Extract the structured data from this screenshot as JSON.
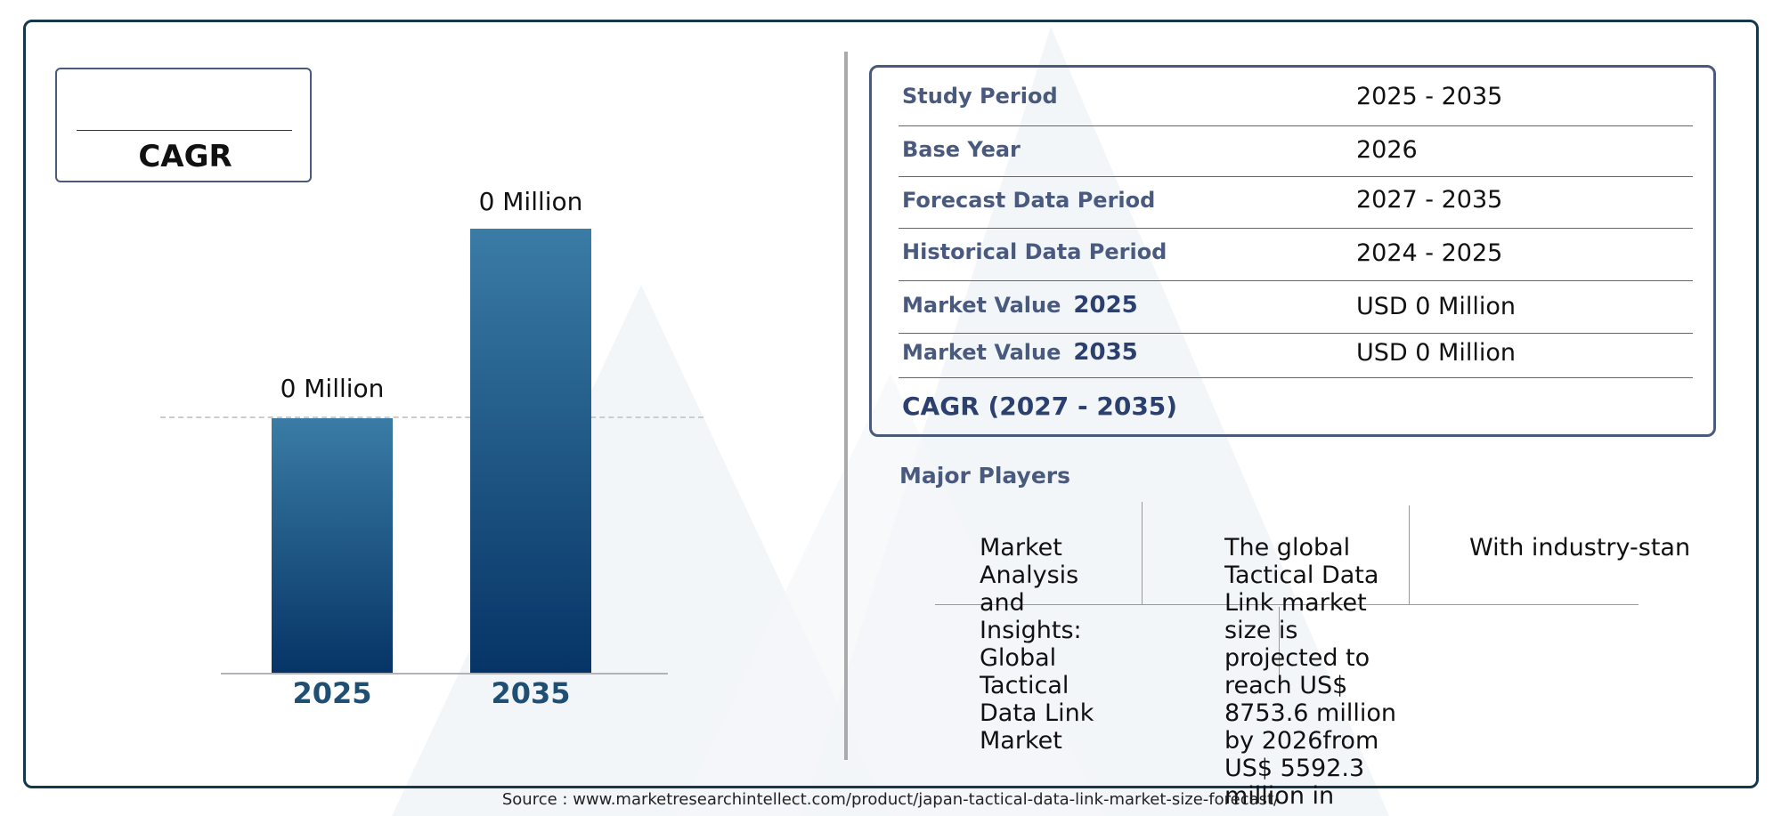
{
  "cagr_box": {
    "label": "CAGR"
  },
  "chart_data": {
    "type": "bar",
    "categories": [
      "2025",
      "2035"
    ],
    "values": [
      0,
      0
    ],
    "data_labels": [
      "0 Million",
      "0 Million"
    ],
    "title": "",
    "xlabel": "",
    "ylabel": ""
  },
  "info_table": {
    "rows": [
      {
        "key": "Study Period",
        "year": "",
        "value": "2025 - 2035"
      },
      {
        "key": "Base Year",
        "year": "",
        "value": "2026"
      },
      {
        "key": "Forecast Data Period",
        "year": "",
        "value": "2027 - 2035"
      },
      {
        "key": "Historical Data Period",
        "year": "",
        "value": "2024 - 2025"
      },
      {
        "key": "Market Value",
        "year": "2025",
        "value": "USD 0 Million"
      },
      {
        "key": "Market Value",
        "year": "2035",
        "value": "USD 0 Million"
      }
    ],
    "cagr_label": "CAGR (2027 - 2035)"
  },
  "major_players": {
    "title": "Major Players",
    "col1": "Market Analysis and Insights: Global Tactical Data Link Market",
    "col2": "The global Tactical Data Link market size is projected to reach US$ 8753.6 million by 2026from US$ 5592.3 million in",
    "col3": "With industry-stan"
  },
  "source": "Source : www.marketresearchintellect.com/product/japan-tactical-data-link-market-size-forecast/",
  "colors": {
    "frame": "#17384a",
    "bar_top": "#3a7ca5",
    "bar_bottom": "#063466",
    "label_key": "#4a5a7f",
    "year_axis": "#1f4f73"
  }
}
